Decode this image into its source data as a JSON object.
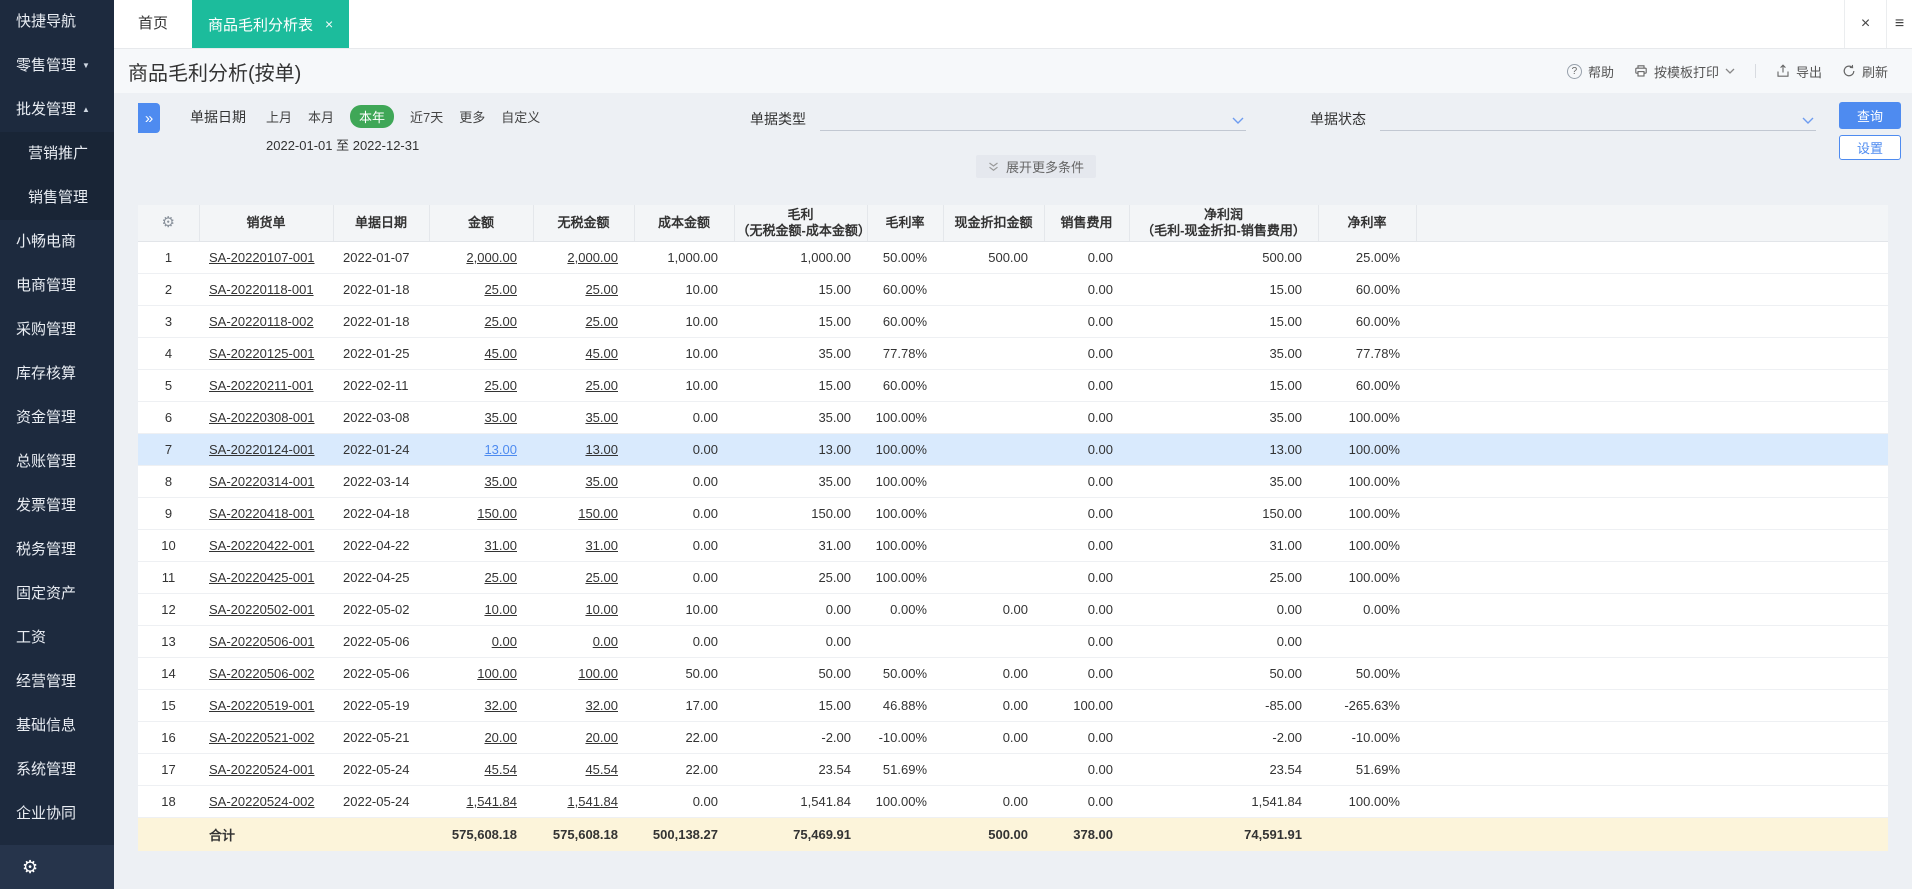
{
  "colors": {
    "accent_blue": "#4e8bf0",
    "tab_teal": "#1cbc9c",
    "pill_green": "#3fa757",
    "negative_red": "#f23c30",
    "selected_row": "#d9eafd",
    "total_row_bg": "#fcf4da",
    "sidebar_bg": "#1d2a3e"
  },
  "icons": {
    "gear": "⚙",
    "expand": "»",
    "close": "×",
    "menu": "≡",
    "caret_up": "▲",
    "caret_down": "▼",
    "help": "?"
  },
  "sidebar": {
    "items": [
      {
        "label": "快捷导航"
      },
      {
        "label": "零售管理",
        "arrow": "down"
      },
      {
        "label": "批发管理",
        "arrow": "up"
      },
      {
        "label": "营销推广",
        "indent": true
      },
      {
        "label": "销售管理",
        "indent": true
      },
      {
        "label": "小畅电商"
      },
      {
        "label": "电商管理"
      },
      {
        "label": "采购管理"
      },
      {
        "label": "库存核算"
      },
      {
        "label": "资金管理"
      },
      {
        "label": "总账管理"
      },
      {
        "label": "发票管理"
      },
      {
        "label": "税务管理"
      },
      {
        "label": "固定资产"
      },
      {
        "label": "工资"
      },
      {
        "label": "经营管理"
      },
      {
        "label": "基础信息"
      },
      {
        "label": "系统管理"
      },
      {
        "label": "企业协同"
      }
    ]
  },
  "tabbar": {
    "tabs": [
      {
        "label": "首页",
        "active": false
      },
      {
        "label": "商品毛利分析表",
        "active": true,
        "closable": true
      }
    ]
  },
  "header": {
    "title": "商品毛利分析(按单)",
    "actions": {
      "help": "帮助",
      "print": "按模板打印",
      "export": "导出",
      "refresh": "刷新"
    }
  },
  "filters": {
    "date_label": "单据日期",
    "quick_options": [
      {
        "label": "上月"
      },
      {
        "label": "本月"
      },
      {
        "label": "本年",
        "selected": true
      },
      {
        "label": "近7天"
      },
      {
        "label": "更多"
      },
      {
        "label": "自定义"
      }
    ],
    "date_range": "2022-01-01 至 2022-12-31",
    "doc_type_label": "单据类型",
    "doc_type_value": "",
    "doc_status_label": "单据状态",
    "doc_status_value": "",
    "expand_more": "展开更多条件",
    "query_button": "查询",
    "settings_button": "设置"
  },
  "table": {
    "columns": [
      {
        "key": "no",
        "label": ""
      },
      {
        "key": "order",
        "label": "销货单"
      },
      {
        "key": "date",
        "label": "单据日期"
      },
      {
        "key": "amount",
        "label": "金额"
      },
      {
        "key": "tax_free",
        "label": "无税金额"
      },
      {
        "key": "cost",
        "label": "成本金额"
      },
      {
        "key": "gross",
        "label": "毛利\n（无税金额-成本金额）"
      },
      {
        "key": "gross_rate",
        "label": "毛利率"
      },
      {
        "key": "cash_discount",
        "label": "现金折扣金额"
      },
      {
        "key": "expense",
        "label": "销售费用"
      },
      {
        "key": "net",
        "label": "净利润\n（毛利-现金折扣-销售费用）"
      },
      {
        "key": "net_rate",
        "label": "净利率"
      }
    ],
    "rows": [
      {
        "no": "1",
        "order": "SA-20220107-001",
        "date": "2022-01-07",
        "amount": "2,000.00",
        "tax_free": "2,000.00",
        "cost": "1,000.00",
        "gross": "1,000.00",
        "gross_rate": "50.00%",
        "cash_discount": "500.00",
        "expense": "0.00",
        "net": "500.00",
        "net_rate": "25.00%"
      },
      {
        "no": "2",
        "order": "SA-20220118-001",
        "date": "2022-01-18",
        "amount": "25.00",
        "tax_free": "25.00",
        "cost": "10.00",
        "gross": "15.00",
        "gross_rate": "60.00%",
        "cash_discount": "",
        "expense": "0.00",
        "net": "15.00",
        "net_rate": "60.00%"
      },
      {
        "no": "3",
        "order": "SA-20220118-002",
        "date": "2022-01-18",
        "amount": "25.00",
        "tax_free": "25.00",
        "cost": "10.00",
        "gross": "15.00",
        "gross_rate": "60.00%",
        "cash_discount": "",
        "expense": "0.00",
        "net": "15.00",
        "net_rate": "60.00%"
      },
      {
        "no": "4",
        "order": "SA-20220125-001",
        "date": "2022-01-25",
        "amount": "45.00",
        "tax_free": "45.00",
        "cost": "10.00",
        "gross": "35.00",
        "gross_rate": "77.78%",
        "cash_discount": "",
        "expense": "0.00",
        "net": "35.00",
        "net_rate": "77.78%"
      },
      {
        "no": "5",
        "order": "SA-20220211-001",
        "date": "2022-02-11",
        "amount": "25.00",
        "tax_free": "25.00",
        "cost": "10.00",
        "gross": "15.00",
        "gross_rate": "60.00%",
        "cash_discount": "",
        "expense": "0.00",
        "net": "15.00",
        "net_rate": "60.00%"
      },
      {
        "no": "6",
        "order": "SA-20220308-001",
        "date": "2022-03-08",
        "amount": "35.00",
        "tax_free": "35.00",
        "cost": "0.00",
        "gross": "35.00",
        "gross_rate": "100.00%",
        "cash_discount": "",
        "expense": "0.00",
        "net": "35.00",
        "net_rate": "100.00%"
      },
      {
        "no": "7",
        "order": "SA-20220124-001",
        "date": "2022-01-24",
        "amount": "13.00",
        "tax_free": "13.00",
        "cost": "0.00",
        "gross": "13.00",
        "gross_rate": "100.00%",
        "cash_discount": "",
        "expense": "0.00",
        "net": "13.00",
        "net_rate": "100.00%",
        "selected": true
      },
      {
        "no": "8",
        "order": "SA-20220314-001",
        "date": "2022-03-14",
        "amount": "35.00",
        "tax_free": "35.00",
        "cost": "0.00",
        "gross": "35.00",
        "gross_rate": "100.00%",
        "cash_discount": "",
        "expense": "0.00",
        "net": "35.00",
        "net_rate": "100.00%"
      },
      {
        "no": "9",
        "order": "SA-20220418-001",
        "date": "2022-04-18",
        "amount": "150.00",
        "tax_free": "150.00",
        "cost": "0.00",
        "gross": "150.00",
        "gross_rate": "100.00%",
        "cash_discount": "",
        "expense": "0.00",
        "net": "150.00",
        "net_rate": "100.00%"
      },
      {
        "no": "10",
        "order": "SA-20220422-001",
        "date": "2022-04-22",
        "amount": "31.00",
        "tax_free": "31.00",
        "cost": "0.00",
        "gross": "31.00",
        "gross_rate": "100.00%",
        "cash_discount": "",
        "expense": "0.00",
        "net": "31.00",
        "net_rate": "100.00%"
      },
      {
        "no": "11",
        "order": "SA-20220425-001",
        "date": "2022-04-25",
        "amount": "25.00",
        "tax_free": "25.00",
        "cost": "0.00",
        "gross": "25.00",
        "gross_rate": "100.00%",
        "cash_discount": "",
        "expense": "0.00",
        "net": "25.00",
        "net_rate": "100.00%"
      },
      {
        "no": "12",
        "order": "SA-20220502-001",
        "date": "2022-05-02",
        "amount": "10.00",
        "tax_free": "10.00",
        "cost": "10.00",
        "gross": "0.00",
        "gross_rate": "0.00%",
        "cash_discount": "0.00",
        "expense": "0.00",
        "net": "0.00",
        "net_rate": "0.00%"
      },
      {
        "no": "13",
        "order": "SA-20220506-001",
        "date": "2022-05-06",
        "amount": "0.00",
        "tax_free": "0.00",
        "cost": "0.00",
        "gross": "0.00",
        "gross_rate": "",
        "cash_discount": "",
        "expense": "0.00",
        "net": "0.00",
        "net_rate": ""
      },
      {
        "no": "14",
        "order": "SA-20220506-002",
        "date": "2022-05-06",
        "amount": "100.00",
        "tax_free": "100.00",
        "cost": "50.00",
        "gross": "50.00",
        "gross_rate": "50.00%",
        "cash_discount": "0.00",
        "expense": "0.00",
        "net": "50.00",
        "net_rate": "50.00%"
      },
      {
        "no": "15",
        "order": "SA-20220519-001",
        "date": "2022-05-19",
        "amount": "32.00",
        "tax_free": "32.00",
        "cost": "17.00",
        "gross": "15.00",
        "gross_rate": "46.88%",
        "cash_discount": "0.00",
        "expense": "100.00",
        "net": "-85.00",
        "net_rate": "-265.63%"
      },
      {
        "no": "16",
        "order": "SA-20220521-002",
        "date": "2022-05-21",
        "amount": "20.00",
        "tax_free": "20.00",
        "cost": "22.00",
        "gross": "-2.00",
        "gross_rate": "-10.00%",
        "cash_discount": "0.00",
        "expense": "0.00",
        "net": "-2.00",
        "net_rate": "-10.00%"
      },
      {
        "no": "17",
        "order": "SA-20220524-001",
        "date": "2022-05-24",
        "amount": "45.54",
        "tax_free": "45.54",
        "cost": "22.00",
        "gross": "23.54",
        "gross_rate": "51.69%",
        "cash_discount": "",
        "expense": "0.00",
        "net": "23.54",
        "net_rate": "51.69%"
      },
      {
        "no": "18",
        "order": "SA-20220524-002",
        "date": "2022-05-24",
        "amount": "1,541.84",
        "tax_free": "1,541.84",
        "cost": "0.00",
        "gross": "1,541.84",
        "gross_rate": "100.00%",
        "cash_discount": "0.00",
        "expense": "0.00",
        "net": "1,541.84",
        "net_rate": "100.00%"
      }
    ],
    "total_label": "合计",
    "total": {
      "amount": "575,608.18",
      "tax_free": "575,608.18",
      "cost": "500,138.27",
      "gross": "75,469.91",
      "gross_rate": "",
      "cash_discount": "500.00",
      "expense": "378.00",
      "net": "74,591.91",
      "net_rate": ""
    }
  }
}
